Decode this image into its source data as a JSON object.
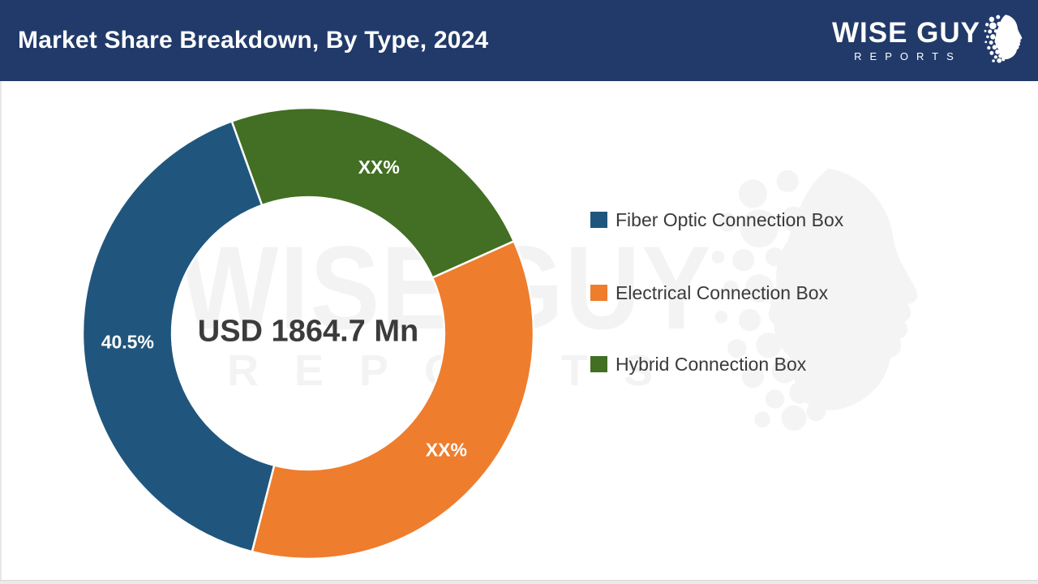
{
  "header": {
    "title": "Market Share Breakdown, By Type, 2024",
    "logo": {
      "brand_line1": "WISE GUY",
      "brand_line2": "REPORTS"
    }
  },
  "watermark": {
    "line1": "WISE GUY",
    "line2": "REPORTS"
  },
  "chart_data": {
    "type": "donut",
    "title": "Market Share Breakdown, By Type, 2024",
    "center_label": "USD 1864.7 Mn",
    "start_deg": 194.4,
    "draw_order": [
      0,
      2,
      1
    ],
    "inner_radius_ratio": 0.604,
    "outer_radius_px": 278,
    "slice_label_color": "#ffffff",
    "legend_position": "right",
    "segments": [
      {
        "label": "Fiber Optic Connection Box",
        "display_value": "40.5%",
        "value_pct": 40.5,
        "color": "#20567D"
      },
      {
        "label": "Electrical Connection Box",
        "display_value": "XX%",
        "value_pct": 35.7,
        "color": "#EE7D2E"
      },
      {
        "label": "Hybrid Connection Box",
        "display_value": "XX%",
        "value_pct": 23.8,
        "color": "#426F23"
      }
    ]
  },
  "legend": {
    "items": [
      {
        "label": "Fiber Optic Connection Box",
        "color": "#20567D"
      },
      {
        "label": "Electrical Connection Box",
        "color": "#EE7D2E"
      },
      {
        "label": "Hybrid Connection Box",
        "color": "#426F23"
      }
    ]
  },
  "colors": {
    "header_bg": "#213A69",
    "watermark": "#f3f3f3",
    "center_text": "#3b3b3b",
    "legend_text": "#3a3a3a"
  }
}
